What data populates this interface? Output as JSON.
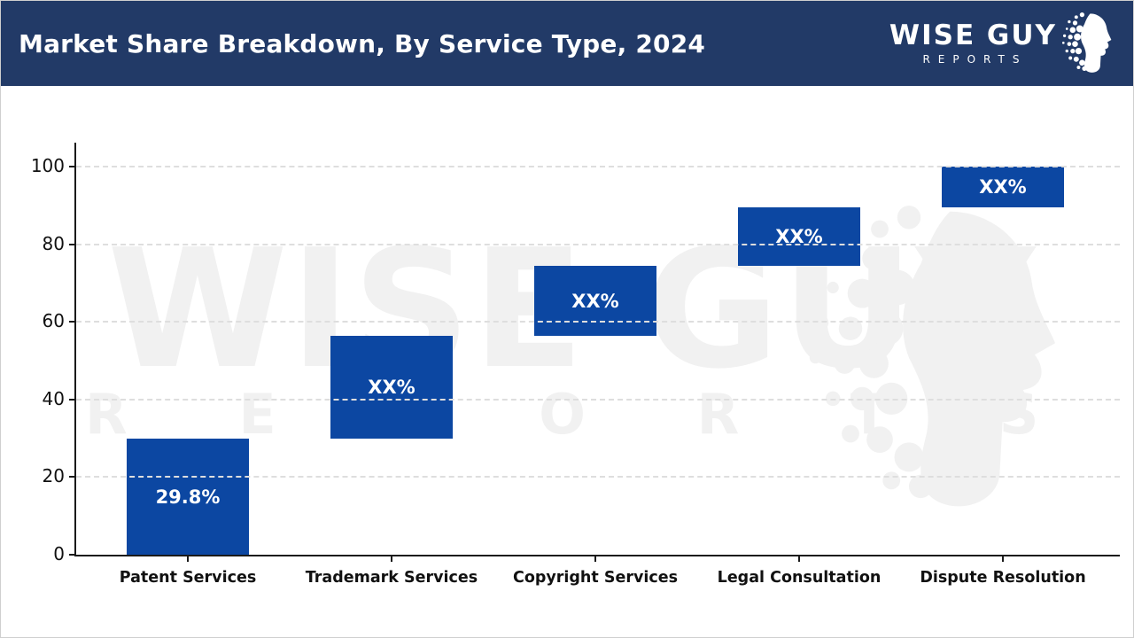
{
  "header": {
    "title": "Market Share Breakdown, By Service Type, 2024",
    "logo": {
      "line1": "WISE GUY",
      "line2": "REPORTS"
    }
  },
  "watermark": {
    "line1": "WISE GUY",
    "line2": "R E P O R T S"
  },
  "colors": {
    "header_bg": "#223a67",
    "bar": "#0c47a2",
    "bar_label": "#ffffff",
    "grid": "#dedede",
    "axis": "#1a1a1a",
    "watermark": "#f1f1f1"
  },
  "chart_data": {
    "type": "bar",
    "subtype": "floating-waterfall",
    "title": "Market Share Breakdown, By Service Type, 2024",
    "xlabel": "",
    "ylabel": "",
    "ylim": [
      0,
      100
    ],
    "yticks": [
      0,
      20,
      40,
      60,
      80,
      100
    ],
    "grid": {
      "show": true,
      "style": "dashed",
      "over_bars": true
    },
    "legend": null,
    "categories": [
      "Patent Services",
      "Trademark Services",
      "Copyright Services",
      "Legal Consultation",
      "Dispute Resolution"
    ],
    "bars": [
      {
        "category": "Patent Services",
        "start": 0,
        "end": 29.8,
        "label": "29.8%"
      },
      {
        "category": "Trademark Services",
        "start": 29.8,
        "end": 56.4,
        "label": "XX%"
      },
      {
        "category": "Copyright Services",
        "start": 56.4,
        "end": 74.4,
        "label": "XX%"
      },
      {
        "category": "Legal Consultation",
        "start": 74.4,
        "end": 89.5,
        "label": "XX%"
      },
      {
        "category": "Dispute Resolution",
        "start": 89.5,
        "end": 100,
        "label": "XX%"
      }
    ]
  }
}
